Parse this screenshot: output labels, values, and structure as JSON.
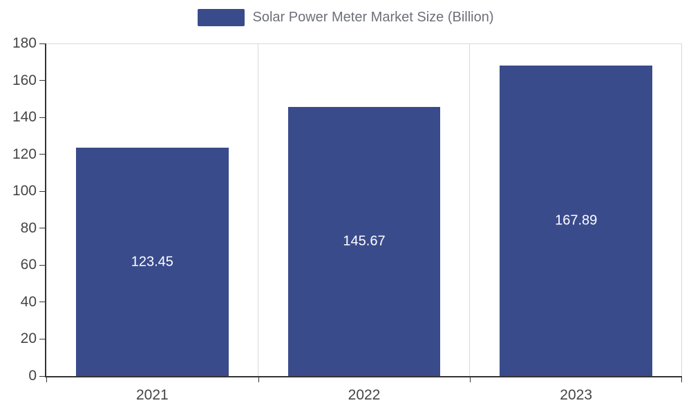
{
  "legend": {
    "label": "Solar Power Meter Market Size (Billion)"
  },
  "colors": {
    "bar": "#3a4b8c",
    "grid": "#d9d9d9",
    "axis": "#333333",
    "axis_label": "#454545",
    "legend_text": "#6e7079",
    "value_label": "#ffffff",
    "background": "#ffffff"
  },
  "chart_data": {
    "type": "bar",
    "title": "Solar Power Meter Market Size (Billion)",
    "series_name": "Solar Power Meter Market Size (Billion)",
    "categories": [
      "2021",
      "2022",
      "2023"
    ],
    "values": [
      123.45,
      145.67,
      167.89
    ],
    "value_labels": [
      "123.45",
      "145.67",
      "167.89"
    ],
    "xlabel": "",
    "ylabel": "",
    "ylim": [
      0,
      180
    ],
    "yticks": [
      "0",
      "20",
      "40",
      "60",
      "80",
      "100",
      "120",
      "140",
      "160",
      "180"
    ],
    "grid": "vertical split lines at category boundaries plus top line; no inner horizontal gridlines",
    "legend_position": "top-center",
    "value_label_position": "inside-center",
    "bar_width_fraction": 0.72
  }
}
